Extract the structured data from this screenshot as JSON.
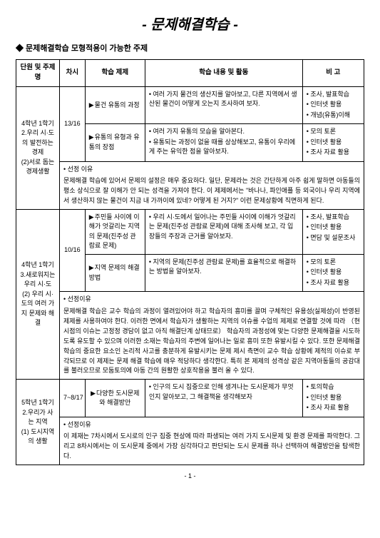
{
  "title": "- 문제해결학습 -",
  "subtitle": "◆ 문제해결학습 모형적용이 가능한 주제",
  "headers": {
    "h1": "단원 및 주제명",
    "h2": "차시",
    "h3": "학습 제제",
    "h4": "학습 내용 및 활동",
    "h5": "비 고"
  },
  "r1": {
    "unit": "4학년 1학기\n2.우리 시·도의 발전하는 경제\n(2)서로 돕는 경제생활",
    "period": "13/16",
    "topic1": "물건 유통의 과정",
    "content1a": "여러 가지 물건의 생산지를 알아보고, 다른 지역에서 생산된 물건이 어떻게 오는지 조사하여 보자.",
    "note1a": "조사, 발표학습",
    "note1b": "인터넷 활용",
    "note1c": "개념(유통)이해",
    "topic2": "유통의 유형과 유통의 장점",
    "content2a": "여러 가지 유통의 모습을 알아본다.",
    "content2b": "유통되는 과정이 없을 때를 상상해보고, 유통이 우리에게 주는 유익한 점을 알아보자.",
    "note2a": "모의 토론",
    "note2b": "인터넷 활용",
    "note2c": "조사 자료 활용",
    "reasonLabel": "• 선정 이유",
    "reasonBody": "문제해결 학습에 있어서 문제의 설정은 매우 중요하다. 일단, 문제라는 것은 간단하게 아주 쉽게 말하면 아동들의 평소 상식으로 잘 이해가 안 되는 성격을 가져야 한다. 이 제제에서는 \"바나나, 파인애플 등 외국이나 우리 지역에서 생산하지 않는 물건이 지금 내 가까이에 있네? 어떻게 된 거지?\" 이런 문제상황에 직면하게 된다."
  },
  "r2": {
    "unit": "4학년 1학기\n3.새로워지는 우리 시·도\n(2) 우리 시·도의 여러 가지 문제와 해결",
    "period": "10/16",
    "topic1": "주민들 사이에 이해가 엇갈리는 지역의 문제(진주성 관람료 문제)",
    "content1a": "우리 시·도에서 일어나는 주민들 사이에 이해가 엇갈리는 문제(진주성 관람료 문제)에 대해 조사해 보고, 각 입장들의 주장과 근거를 알아보자.",
    "note1a": "조사, 발표학습",
    "note1b": "인터넷 활용",
    "note1c": "면담 및 설문조사",
    "topic2": "지역 문제의 해결 방법",
    "content2a": "지역의 문제(진주성 관람료 문제)를 효율적으로 해결하는 방법을 알아보자.",
    "note2a": "모의 토론",
    "note2b": "인터넷 활용",
    "note2c": "조사 자료 활용",
    "reasonLabel": "• 선정이유",
    "reasonBody": "문제해결 학습은 교수 학습의 과정이 열려있어야 하고 학습자의 흥미를 끌며 구체적인 유용성(실제성)이 반영된 제제를 사용하여야 한다. 이러한 면에서 학습자가 생활하는 지역의 이슈를 수업의 제제로 연결할 것에 따라 （현시점의 이슈는 고정정 경담이 없고 아직 해결단계 상태므로） 학습자의 과정성에 맞는 다양한 문제해결을 시도하도록 유도할 수 있으며 이러한 소재는 학습자의 주변에 일어나는 일로 흥미 또한 유발시킬 수 있다. 또한 문제해결학습의 중요한 요소인 논리적 사고를 충분하게 유발시키는 문제 제시 측면이 교수 학습 상황에 제적의 이슈로 부각되므로 이 제제는 문제 해결 학습에 매우 적당하다 생각한다. 특히 본 제제의 성격상 같은 지역아동들의 공감대를 불러오므로 모둠토의에 아동 간의 원활한 상호작용을 불러 올 수 있다."
  },
  "r3": {
    "unit": "5학년 1학기\n2.우리가 사는 지역\n(1) 도시지역의 생활",
    "period": "7~8/17",
    "topic1": "다양한 도시문제와 해결방안",
    "content1a": "인구의 도시 집중으로 인해 생겨나는 도시문제가 무엇인지 알아보고, 그 해결책을 생각해보자",
    "note1a": "토의학습",
    "note1b": "인터넷 활용",
    "note1c": "조사 자료 활용",
    "reasonLabel": "• 선정이유",
    "reasonBody": "이 제재는 7차시에서 도시로의 인구 집중 현상에 따라 파생되는 여러 가지 도시문제 및 환경 문제를 파악한다. 그리고 8차시에서는 이 도시문제 중에서 가장 심각하다고 판단되는 도시 문제를 하나 선택하여 해결방안을 탐색한다."
  },
  "pageNum": "- 1 -"
}
